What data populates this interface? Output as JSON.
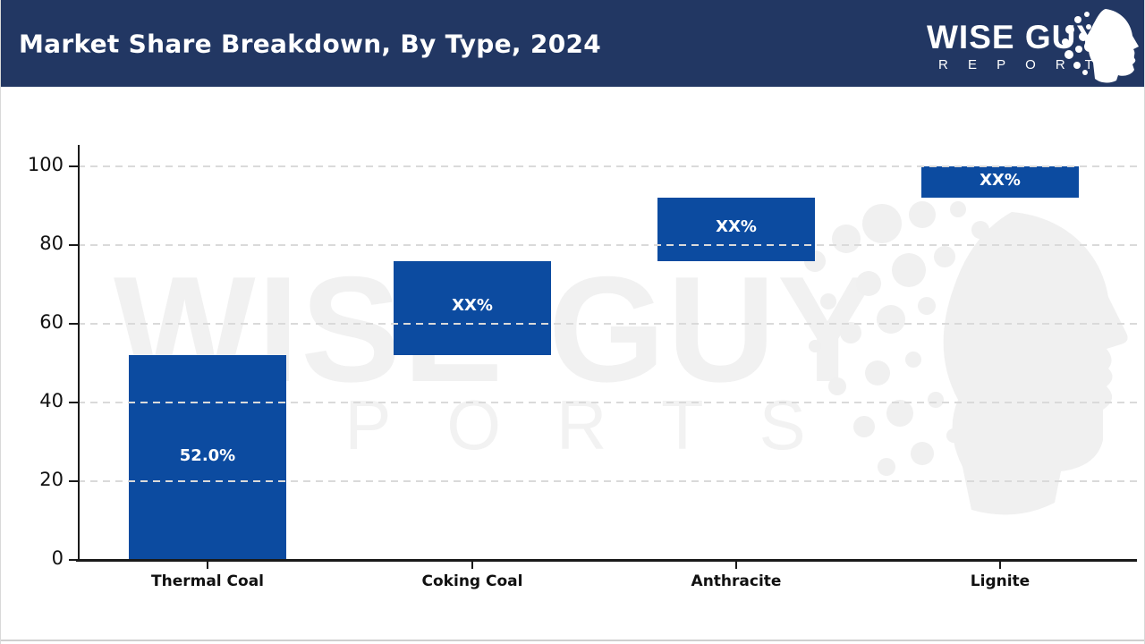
{
  "header": {
    "title": "Market Share Breakdown, By Type, 2024",
    "bg_color": "#223763",
    "logo": {
      "line1": "WISE GUY",
      "line2": "R E P O R T S"
    }
  },
  "watermark": {
    "line1": "WISE GUY",
    "line2": "REPORTS"
  },
  "chart_data": {
    "type": "bar",
    "subtype": "waterfall",
    "title": "Market Share Breakdown, By Type, 2024",
    "categories": [
      "Thermal Coal",
      "Coking Coal",
      "Anthracite",
      "Lignite"
    ],
    "segments": [
      {
        "category": "Thermal Coal",
        "start": 0,
        "end": 52,
        "increment": 52,
        "label": "52.0%"
      },
      {
        "category": "Coking Coal",
        "start": 52,
        "end": 76,
        "increment": 24,
        "label": "XX%"
      },
      {
        "category": "Anthracite",
        "start": 76,
        "end": 92,
        "increment": 16,
        "label": "XX%"
      },
      {
        "category": "Lignite",
        "start": 92,
        "end": 100,
        "increment": 8,
        "label": "XX%"
      }
    ],
    "yticks": [
      0,
      20,
      40,
      60,
      80,
      100
    ],
    "ylim": [
      0,
      105
    ],
    "xlabel": "",
    "ylabel": "",
    "grid": "horizontal-dashed-over-bars",
    "legend": "none",
    "bar_color": "#0c4ba0",
    "bar_label_color": "#ffffff",
    "axis_color": "#1a1a1a",
    "gridline_color": "#dadada"
  }
}
